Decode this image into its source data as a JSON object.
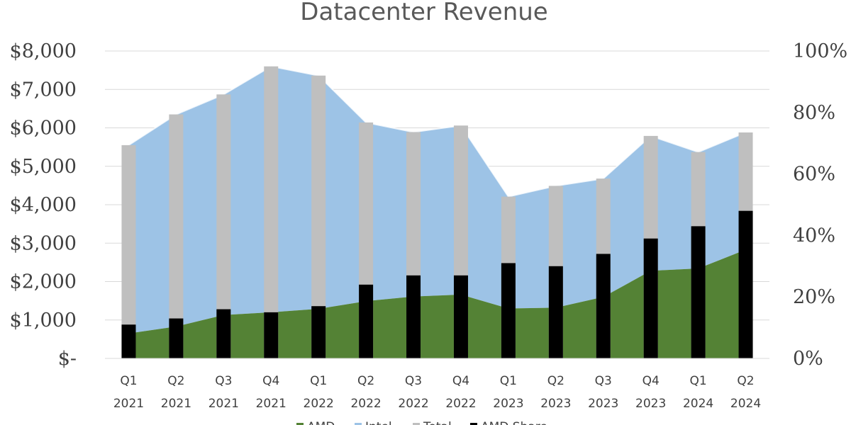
{
  "chart_data": {
    "type": "bar",
    "title": "Datacenter Revenue",
    "categories": [
      [
        "Q1",
        "2021"
      ],
      [
        "Q2",
        "2021"
      ],
      [
        "Q3",
        "2021"
      ],
      [
        "Q4",
        "2021"
      ],
      [
        "Q1",
        "2022"
      ],
      [
        "Q2",
        "2022"
      ],
      [
        "Q3",
        "2022"
      ],
      [
        "Q4",
        "2022"
      ],
      [
        "Q1",
        "2023"
      ],
      [
        "Q2",
        "2023"
      ],
      [
        "Q3",
        "2023"
      ],
      [
        "Q4",
        "2023"
      ],
      [
        "Q1",
        "2024"
      ],
      [
        "Q2",
        "2024"
      ]
    ],
    "y_left": {
      "ylim": [
        0,
        8000
      ],
      "ticks": [
        "$-",
        "$1,000",
        "$2,000",
        "$3,000",
        "$4,000",
        "$5,000",
        "$6,000",
        "$7,000",
        "$8,000"
      ]
    },
    "y_right": {
      "ylim": [
        0,
        100
      ],
      "ticks": [
        "0%",
        "20%",
        "40%",
        "60%",
        "80%",
        "100%"
      ]
    },
    "grid": true,
    "legend_position": "bottom",
    "series": [
      {
        "name": "AMD",
        "type": "area",
        "axis": "left",
        "color": "#548235",
        "values": [
          650,
          830,
          1130,
          1200,
          1290,
          1490,
          1610,
          1660,
          1300,
          1320,
          1600,
          2280,
          2340,
          2830
        ]
      },
      {
        "name": "Intel",
        "type": "area",
        "axis": "left",
        "color": "#9DC3E6",
        "values": [
          4900,
          5520,
          5740,
          6400,
          6070,
          4650,
          4280,
          4400,
          2910,
          3170,
          3080,
          3510,
          3030,
          3050
        ]
      },
      {
        "name": "Total",
        "type": "bar",
        "axis": "left",
        "color": "#BFBFBF",
        "values": [
          5550,
          6350,
          6870,
          7600,
          7360,
          6140,
          5890,
          6060,
          4210,
          4490,
          4680,
          5790,
          5370,
          5880
        ]
      },
      {
        "name": "AMD Share",
        "type": "bar",
        "axis": "right",
        "color": "#000000",
        "values": [
          11,
          13,
          16,
          15,
          17,
          24,
          27,
          27,
          31,
          30,
          34,
          39,
          43,
          48
        ]
      }
    ]
  }
}
